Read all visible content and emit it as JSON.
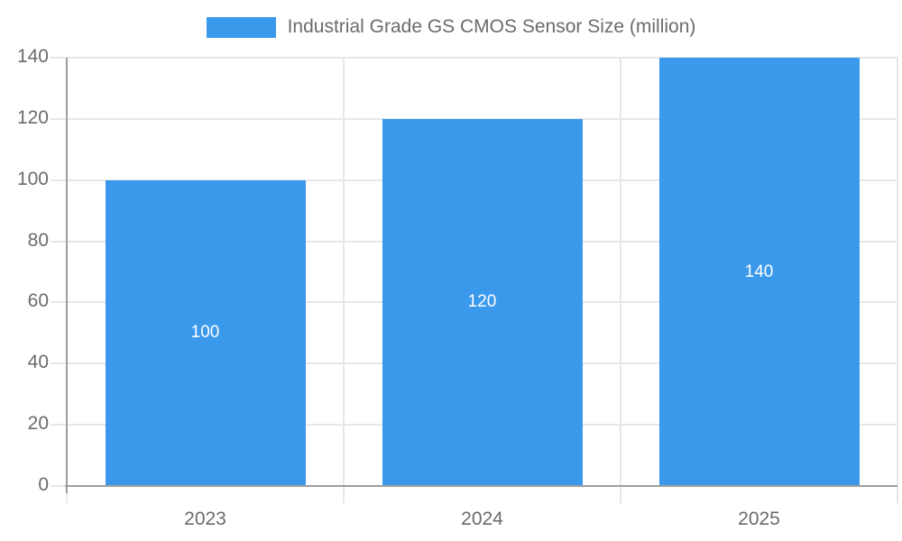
{
  "legend": {
    "label": "Industrial Grade GS CMOS Sensor Size (million)",
    "swatch_icon": "legend-swatch-blue"
  },
  "chart_data": {
    "type": "bar",
    "title": "Industrial Grade GS CMOS Sensor Size (million)",
    "series": [
      {
        "name": "Industrial Grade GS CMOS Sensor Size (million)",
        "values": [
          100,
          120,
          140
        ]
      }
    ],
    "categories": [
      "2023",
      "2024",
      "2025"
    ],
    "data_labels": [
      "100",
      "120",
      "140"
    ],
    "xlabel": "",
    "ylabel": "",
    "ylim": [
      0,
      140
    ],
    "yticks": [
      0,
      20,
      40,
      60,
      80,
      100,
      120,
      140
    ],
    "grid": true,
    "legend_position": "top"
  },
  "colors": {
    "bar": "#3b99ec",
    "bar_label_text": "#ffffff",
    "grid_line": "#e7e7e7",
    "axis_line": "#9e9e9e",
    "tick_text": "#6b6b6b",
    "legend_text": "#6b6b6b"
  }
}
